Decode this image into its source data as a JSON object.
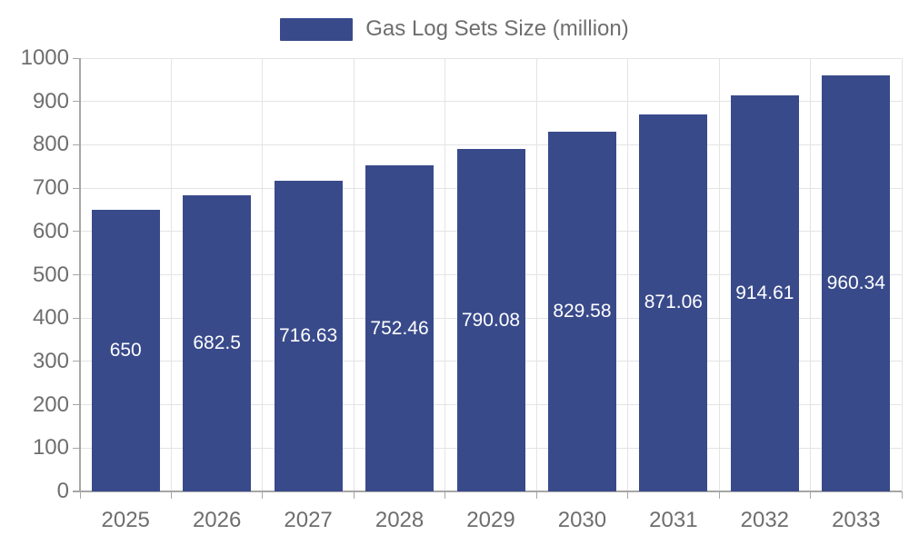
{
  "legend": {
    "label": "Gas Log Sets Size (million)"
  },
  "colors": {
    "bar": "#394A8B",
    "grid": "#E4E4E4",
    "axis": "#A6A6A6",
    "axis_text": "#6E6E6E",
    "bar_label_text": "#FFFFFF",
    "background": "#FFFFFF"
  },
  "chart_data": {
    "type": "bar",
    "title": "Gas Log Sets Size (million)",
    "categories": [
      "2025",
      "2026",
      "2027",
      "2028",
      "2029",
      "2030",
      "2031",
      "2032",
      "2033"
    ],
    "values": [
      650,
      682.5,
      716.63,
      752.46,
      790.08,
      829.58,
      871.06,
      914.61,
      960.34
    ],
    "value_labels": [
      "650",
      "682.5",
      "716.63",
      "752.46",
      "790.08",
      "829.58",
      "871.06",
      "914.61",
      "960.34"
    ],
    "series_name": "Gas Log Sets Size (million)",
    "xlabel": "",
    "ylabel": "",
    "ylim": [
      0,
      1000
    ],
    "ytick_interval": 100,
    "yticks": [
      "0",
      "100",
      "200",
      "300",
      "400",
      "500",
      "600",
      "700",
      "800",
      "900",
      "1000"
    ],
    "grid": true,
    "legend_position": "top-center",
    "bar_label_position": "middle"
  }
}
